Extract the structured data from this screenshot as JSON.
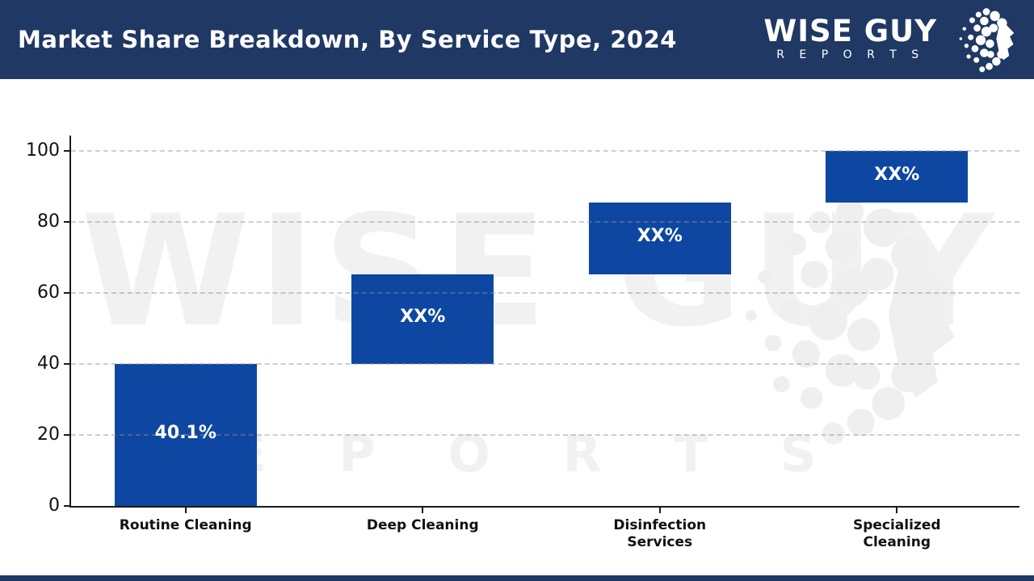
{
  "header": {
    "title": "Market Share Breakdown, By Service Type, 2024",
    "logo": {
      "line1": "WISE GUY",
      "line2": "R E P O R T S"
    }
  },
  "watermark": {
    "line1": "WISE GUY",
    "line2": "R E P O R T S"
  },
  "colors": {
    "header_bg": "#1f3864",
    "bar": "#0d47a1",
    "bar_label": "#ffffff",
    "grid": "#c9c9c9",
    "axis": "#1a1a1a",
    "watermark": "#f1f1f1"
  },
  "chart_data": {
    "type": "bar",
    "subtype": "waterfall",
    "title": "Market Share Breakdown, By Service Type, 2024",
    "categories": [
      "Routine Cleaning",
      "Deep Cleaning",
      "Disinfection Services",
      "Specialized Cleaning"
    ],
    "category_lines": [
      [
        "Routine Cleaning"
      ],
      [
        "Deep Cleaning"
      ],
      [
        "Disinfection",
        "Services"
      ],
      [
        "Specialized",
        "Cleaning"
      ]
    ],
    "series": [
      {
        "name": "Market Share",
        "segments": [
          {
            "category": "Routine Cleaning",
            "start": 0,
            "end": 40.1,
            "label": "40.1%"
          },
          {
            "category": "Deep Cleaning",
            "start": 40.1,
            "end": 65.2,
            "label": "XX%"
          },
          {
            "category": "Disinfection Services",
            "start": 65.2,
            "end": 85.5,
            "label": "XX%"
          },
          {
            "category": "Specialized Cleaning",
            "start": 85.5,
            "end": 100,
            "label": "XX%"
          }
        ]
      }
    ],
    "ylim": [
      0,
      100
    ],
    "yticks": [
      0,
      20,
      40,
      60,
      80,
      100
    ],
    "xlabel": "",
    "ylabel": "",
    "grid": "horizontal dashed, drawn over bars",
    "legend": "none"
  }
}
